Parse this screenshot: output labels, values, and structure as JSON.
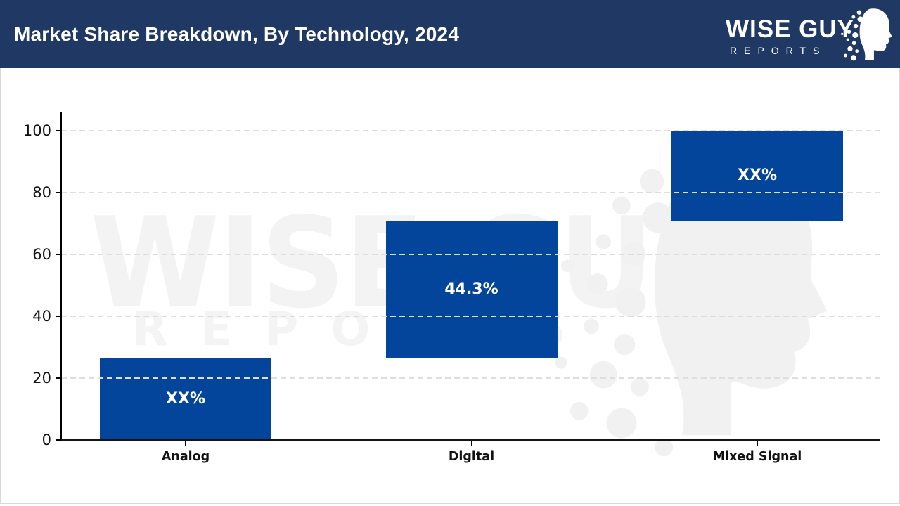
{
  "header": {
    "title": "Market Share Breakdown, By Technology, 2024",
    "bg_color": "#1f3864",
    "logo": {
      "name": "WISE GUY",
      "tagline": "REPORTS"
    }
  },
  "watermark": {
    "name": "WISE GUY",
    "tagline": "REPORTS"
  },
  "chart_data": {
    "type": "bar",
    "subtype": "floating-segment-waterfall",
    "title": "Market Share Breakdown, By Technology, 2024",
    "categories": [
      "Analog",
      "Digital",
      "Mixed Signal"
    ],
    "bars": [
      {
        "category": "Analog",
        "base": 0,
        "value": 26.5,
        "top": 26.5,
        "label": "XX%"
      },
      {
        "category": "Digital",
        "base": 26.5,
        "value": 44.3,
        "top": 70.8,
        "label": "44.3%"
      },
      {
        "category": "Mixed Signal",
        "base": 70.8,
        "value": 29.2,
        "top": 100,
        "label": "XX%"
      }
    ],
    "xlabel": "",
    "ylabel": "",
    "ylim": [
      0,
      100
    ],
    "yticks": [
      0,
      20,
      40,
      60,
      80,
      100
    ],
    "grid": "horizontal-dashed-on-top",
    "legend": "none",
    "bar_color": "#04459c",
    "bar_label_color": "#ffffff",
    "axis_color": "#000000",
    "gridline_color": "#dedede",
    "tick_label_color": "#111111"
  }
}
